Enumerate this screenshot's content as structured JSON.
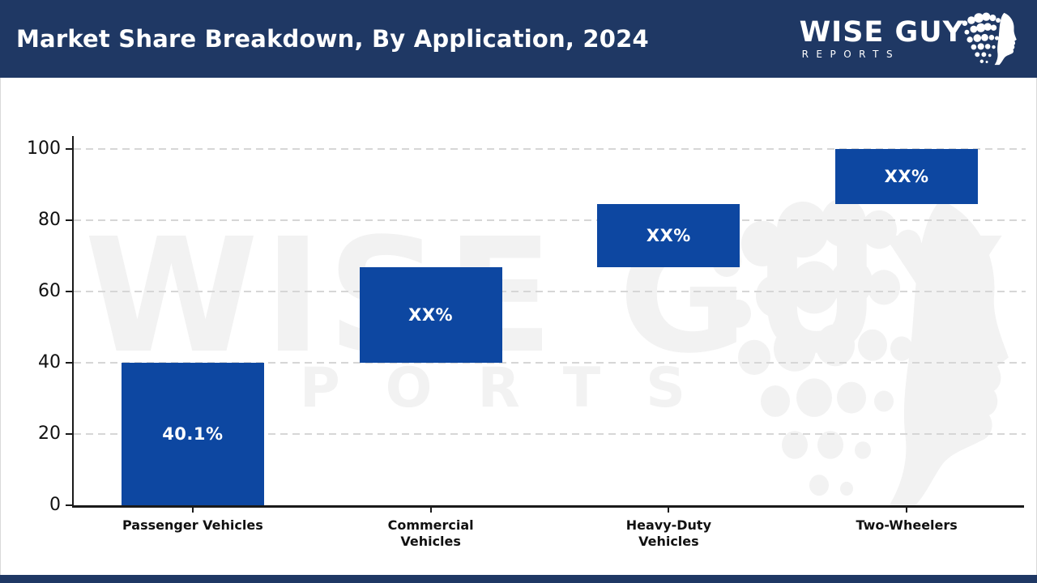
{
  "header": {
    "title": "Market Share Breakdown, By Application, 2024",
    "brand": {
      "line1": "WISE GUY",
      "line2": "REPORTS"
    },
    "bg_color": "#1f3864"
  },
  "watermark": {
    "line1": "WISE GUY",
    "line2": "REPORTS",
    "color": "#f2f2f2"
  },
  "chart_data": {
    "type": "bar",
    "variant": "waterfall-floating-bars",
    "title": "Market Share Breakdown, By Application, 2024",
    "categories": [
      "Passenger Vehicles",
      "Commercial Vehicles",
      "Heavy-Duty Vehicles",
      "Two-Wheelers"
    ],
    "category_label_lines": [
      [
        "Passenger Vehicles"
      ],
      [
        "Commercial",
        "Vehicles"
      ],
      [
        "Heavy-Duty",
        "Vehicles"
      ],
      [
        "Two-Wheelers"
      ]
    ],
    "bars": [
      {
        "category": "Passenger Vehicles",
        "start": 0,
        "end": 40.1,
        "label": "40.1%"
      },
      {
        "category": "Commercial Vehicles",
        "start": 40.1,
        "end": 66.8,
        "label": "XX%"
      },
      {
        "category": "Heavy-Duty Vehicles",
        "start": 66.8,
        "end": 84.5,
        "label": "XX%"
      },
      {
        "category": "Two-Wheelers",
        "start": 84.5,
        "end": 100,
        "label": "XX%"
      }
    ],
    "xlabel": "",
    "ylabel": "",
    "ylim": [
      0,
      100
    ],
    "yticks": [
      0,
      20,
      40,
      60,
      80,
      100
    ],
    "grid": {
      "horizontal": true,
      "style": "dashed",
      "color": "#d6d6d6"
    },
    "legend": "none",
    "bar_color": "#0d47a1",
    "bar_label_color": "#ffffff"
  }
}
